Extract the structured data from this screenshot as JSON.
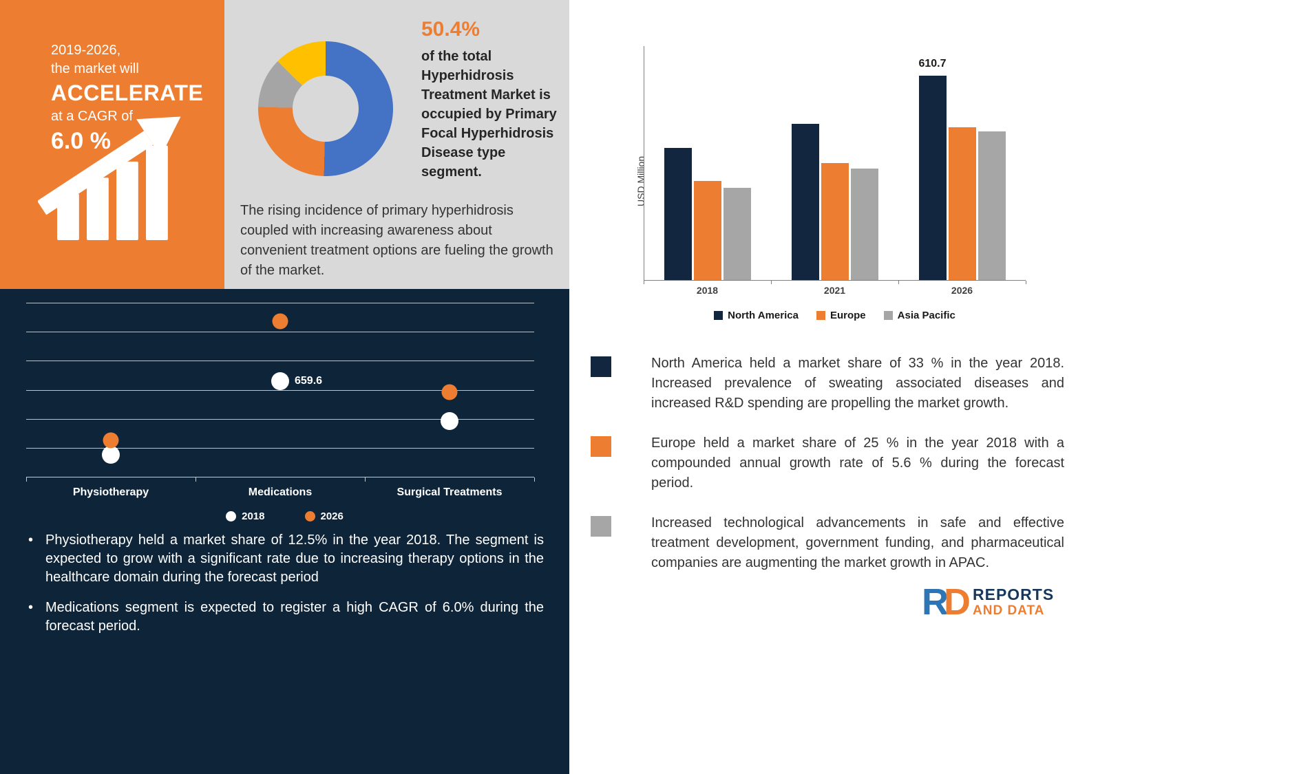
{
  "colors": {
    "orange": "#ED7D31",
    "navy_panel": "#0E2439",
    "bar_navy": "#12263F",
    "panel_gray": "#D9D9D9",
    "donut_blue": "#4472C4",
    "donut_gray": "#A5A5A5",
    "donut_yellow": "#FFC000",
    "bar_gray": "#A6A6A6",
    "logo_blue": "#2E75B6"
  },
  "cagr_panel": {
    "line1": "2019-2026,",
    "line2": "the market will",
    "accelerate": "ACCELERATE",
    "line4": "at a CAGR of",
    "cagr_value": "6.0 %"
  },
  "donut_panel": {
    "headline_pct": "50.4%",
    "headline": "of the total Hyperhidrosis Treatment Market is occupied by Primary Focal Hyperhidrosis Disease type segment.",
    "body": "The rising incidence of primary hyperhidrosis coupled with increasing awareness about convenient treatment options are fueling the growth of the market."
  },
  "segment_panel": {
    "legend": [
      {
        "label": "2018",
        "color": "#FFFFFF"
      },
      {
        "label": "2026",
        "color": "#ED7D31"
      }
    ],
    "bullets": [
      "Physiotherapy held a market share of 12.5% in the year 2018. The segment is expected to grow with a significant rate due to increasing therapy options in the healthcare domain during the forecast period",
      "Medications segment is expected to register a high CAGR of 6.0% during the forecast period."
    ]
  },
  "regional_panel": {
    "bullets": [
      {
        "swatch": "#12263F",
        "text": "North America held a market share of 33 % in the year 2018. Increased prevalence of sweating associated diseases and increased R&D spending are propelling the market growth."
      },
      {
        "swatch": "#ED7D31",
        "text": "Europe held a market share of 25 % in the year 2018 with a compounded annual growth rate of 5.6 % during the forecast period."
      },
      {
        "swatch": "#A6A6A6",
        "text": "Increased technological advancements in safe and effective treatment development, government funding, and pharmaceutical companies are augmenting the market growth in APAC."
      }
    ]
  },
  "logo": {
    "mark_r": "R",
    "mark_d": "D",
    "line1": "REPORTS",
    "line2": "AND DATA"
  },
  "chart_data": [
    {
      "id": "disease-type-donut",
      "type": "pie",
      "donut": true,
      "segments": [
        {
          "label": "Primary Focal Hyperhidrosis",
          "value": 50.4,
          "color": "#4472C4"
        },
        {
          "label": "",
          "value": 25.0,
          "color": "#ED7D31"
        },
        {
          "label": "",
          "value": 12.0,
          "color": "#A5A5A5"
        },
        {
          "label": "",
          "value": 12.6,
          "color": "#FFC000"
        }
      ]
    },
    {
      "id": "segment-dot-plot",
      "type": "scatter",
      "categories": [
        "Physiotherapy",
        "Medications",
        "Surgical Treatments"
      ],
      "series": [
        {
          "name": "2018",
          "color": "#FFFFFF",
          "values": [
            150,
            659.6,
            385
          ]
        },
        {
          "name": "2026",
          "color": "#ED7D31",
          "values": [
            250,
            1070,
            585
          ]
        }
      ],
      "data_labels": [
        {
          "series": "2018",
          "category": "Medications",
          "text": "659.6"
        }
      ],
      "ylim": [
        0,
        1200
      ],
      "grid_step": 200,
      "grid": true,
      "legend_position": "bottom"
    },
    {
      "id": "regional-bar-chart",
      "type": "bar",
      "categories": [
        "2018",
        "2021",
        "2026"
      ],
      "series": [
        {
          "name": "North America",
          "color": "#12263F",
          "values": [
            395,
            468,
            610.7
          ]
        },
        {
          "name": "Europe",
          "color": "#ED7D31",
          "values": [
            296,
            350,
            458
          ]
        },
        {
          "name": "Asia Pacific",
          "color": "#A6A6A6",
          "values": [
            276,
            333,
            445
          ]
        }
      ],
      "ylabel": "USD Million",
      "data_labels": [
        {
          "series": "North America",
          "category": "2026",
          "text": "610.7"
        }
      ],
      "ylim": [
        0,
        700
      ],
      "grid": false,
      "legend_position": "bottom"
    }
  ]
}
